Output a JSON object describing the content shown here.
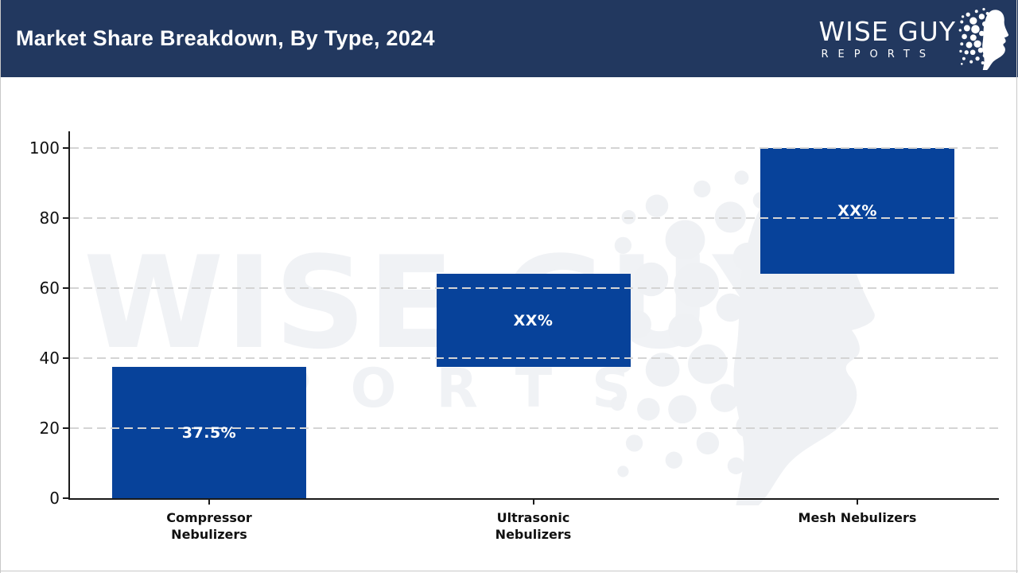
{
  "header": {
    "title": "Market Share Breakdown, By Type, 2024",
    "bg_color": "#22385F",
    "logo": {
      "line1": "WISE GUY",
      "line2": "REPORTS"
    }
  },
  "watermark": {
    "line1": "WISE GUY",
    "line2": "REPORTS"
  },
  "chart_data": {
    "type": "bar",
    "subtype": "floating-waterfall",
    "title": "Market Share Breakdown, By Type, 2024",
    "categories": [
      "Compressor\nNebulizers",
      "Ultrasonic\nNebulizers",
      "Mesh Nebulizers"
    ],
    "segments": [
      {
        "category": "Compressor Nebulizers",
        "from": 0,
        "to": 37.5,
        "value": 37.5,
        "label": "37.5%"
      },
      {
        "category": "Ultrasonic Nebulizers",
        "from": 37.5,
        "to": 64,
        "value": 26.5,
        "label": "XX%"
      },
      {
        "category": "Mesh Nebulizers",
        "from": 64,
        "to": 100,
        "value": 36,
        "label": "XX%"
      }
    ],
    "xlabel": "",
    "ylabel": "",
    "ylim": [
      0,
      105
    ],
    "yticks": [
      0,
      20,
      40,
      60,
      80,
      100
    ],
    "grid": "dashed horizontal, drawn over bars",
    "legend": "none",
    "bar_color": "#07429A",
    "bar_label_color": "#ffffff",
    "axis_color": "#1a1a1a",
    "grid_color": "#d4d4d4"
  }
}
